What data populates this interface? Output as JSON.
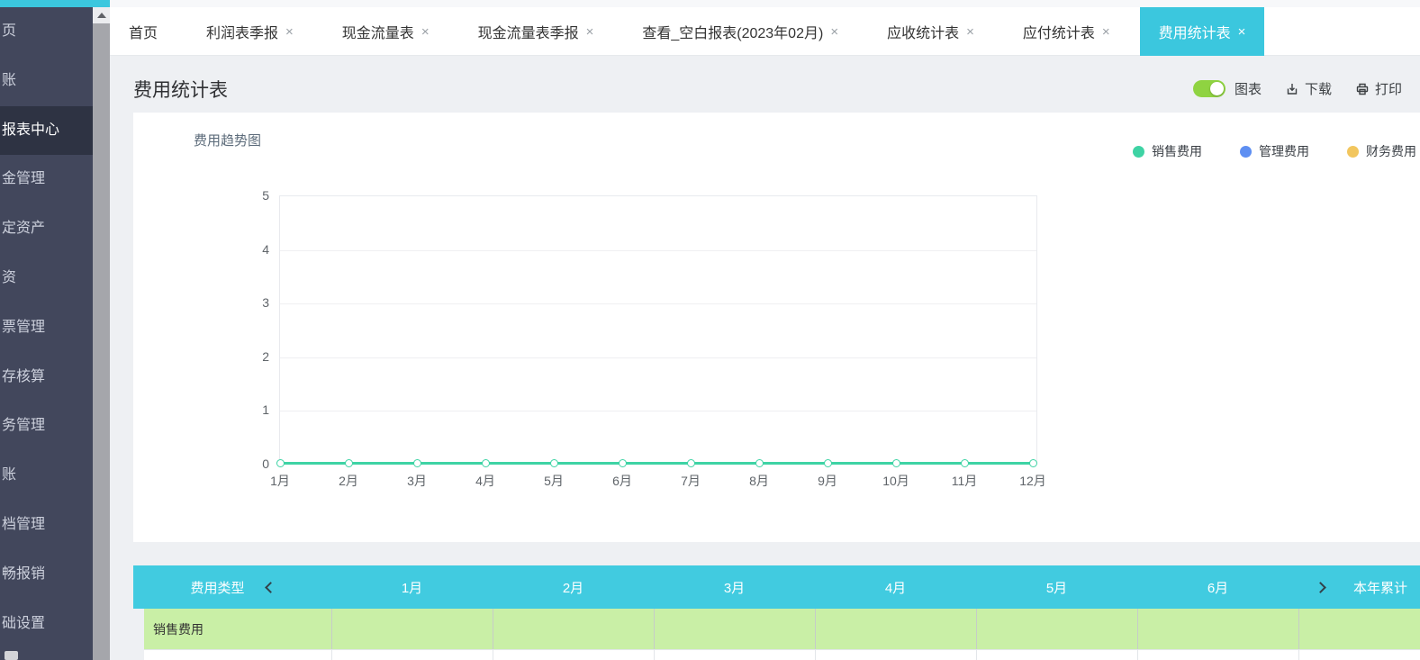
{
  "colors": {
    "accent_cyan": "#3bc7de",
    "table_header_cyan": "#41cbe0",
    "sidebar_bg": "#42475c",
    "sidebar_active_bg": "#2e3343",
    "row_highlight_green": "#c9efa6",
    "series_green": "#3ed3a4",
    "series_blue": "#5e8ff2",
    "series_yellow": "#f2c65e",
    "toggle_on_green": "#8fd341"
  },
  "icons": {
    "close_tab": "×",
    "scroll_up": "triangle-up",
    "column_scroll_left": "chevron-left",
    "column_scroll_right": "chevron-right",
    "download": "tray-arrow-down",
    "print": "printer",
    "legend_marker": "filled-circle",
    "chart_toggle": "switch-on"
  },
  "sidebar": {
    "items": [
      {
        "label": "页",
        "active": false
      },
      {
        "label": "账",
        "active": false
      },
      {
        "label": "报表中心",
        "active": true
      },
      {
        "label": "金管理",
        "active": false
      },
      {
        "label": "定资产",
        "active": false
      },
      {
        "label": "资",
        "active": false
      },
      {
        "label": "票管理",
        "active": false
      },
      {
        "label": "存核算",
        "active": false
      },
      {
        "label": "务管理",
        "active": false
      },
      {
        "label": "账",
        "active": false
      },
      {
        "label": "档管理",
        "active": false
      },
      {
        "label": "畅报销",
        "active": false
      },
      {
        "label": "础设置",
        "active": false
      }
    ]
  },
  "tabs": [
    {
      "label": "首页",
      "closable": false,
      "active": false
    },
    {
      "label": "利润表季报",
      "closable": true,
      "active": false
    },
    {
      "label": "现金流量表",
      "closable": true,
      "active": false
    },
    {
      "label": "现金流量表季报",
      "closable": true,
      "active": false
    },
    {
      "label": "查看_空白报表(2023年02月)",
      "closable": true,
      "active": false
    },
    {
      "label": "应收统计表",
      "closable": true,
      "active": false
    },
    {
      "label": "应付统计表",
      "closable": true,
      "active": false
    },
    {
      "label": "费用统计表",
      "closable": true,
      "active": true
    }
  ],
  "page": {
    "title": "费用统计表"
  },
  "toolbar": {
    "toggle_label": "图表",
    "toggle_on": true,
    "download_label": "下载",
    "print_label": "打印"
  },
  "chart_data": {
    "type": "line",
    "title": "费用趋势图",
    "x": [
      "1月",
      "2月",
      "3月",
      "4月",
      "5月",
      "6月",
      "7月",
      "8月",
      "9月",
      "10月",
      "11月",
      "12月"
    ],
    "series": [
      {
        "name": "销售费用",
        "color": "#3ed3a4",
        "values": [
          0,
          0,
          0,
          0,
          0,
          0,
          0,
          0,
          0,
          0,
          0,
          0
        ]
      },
      {
        "name": "管理费用",
        "color": "#5e8ff2",
        "values": [
          0,
          0,
          0,
          0,
          0,
          0,
          0,
          0,
          0,
          0,
          0,
          0
        ]
      },
      {
        "name": "财务费用",
        "color": "#f2c65e",
        "values": [
          0,
          0,
          0,
          0,
          0,
          0,
          0,
          0,
          0,
          0,
          0,
          0
        ]
      }
    ],
    "ylim": [
      0,
      5
    ],
    "yticks": [
      0,
      1,
      2,
      3,
      4,
      5
    ],
    "grid": true,
    "legend_position": "top-right",
    "xlabel": "",
    "ylabel": ""
  },
  "table": {
    "columns": [
      "费用类型",
      "1月",
      "2月",
      "3月",
      "4月",
      "5月",
      "6月",
      "本年累计"
    ],
    "rows": [
      {
        "type": "销售费用",
        "values": [
          "",
          "",
          "",
          "",
          "",
          "",
          ""
        ]
      },
      {
        "type": "",
        "values": [
          "",
          "",
          "",
          "",
          "",
          "",
          ""
        ]
      }
    ]
  }
}
